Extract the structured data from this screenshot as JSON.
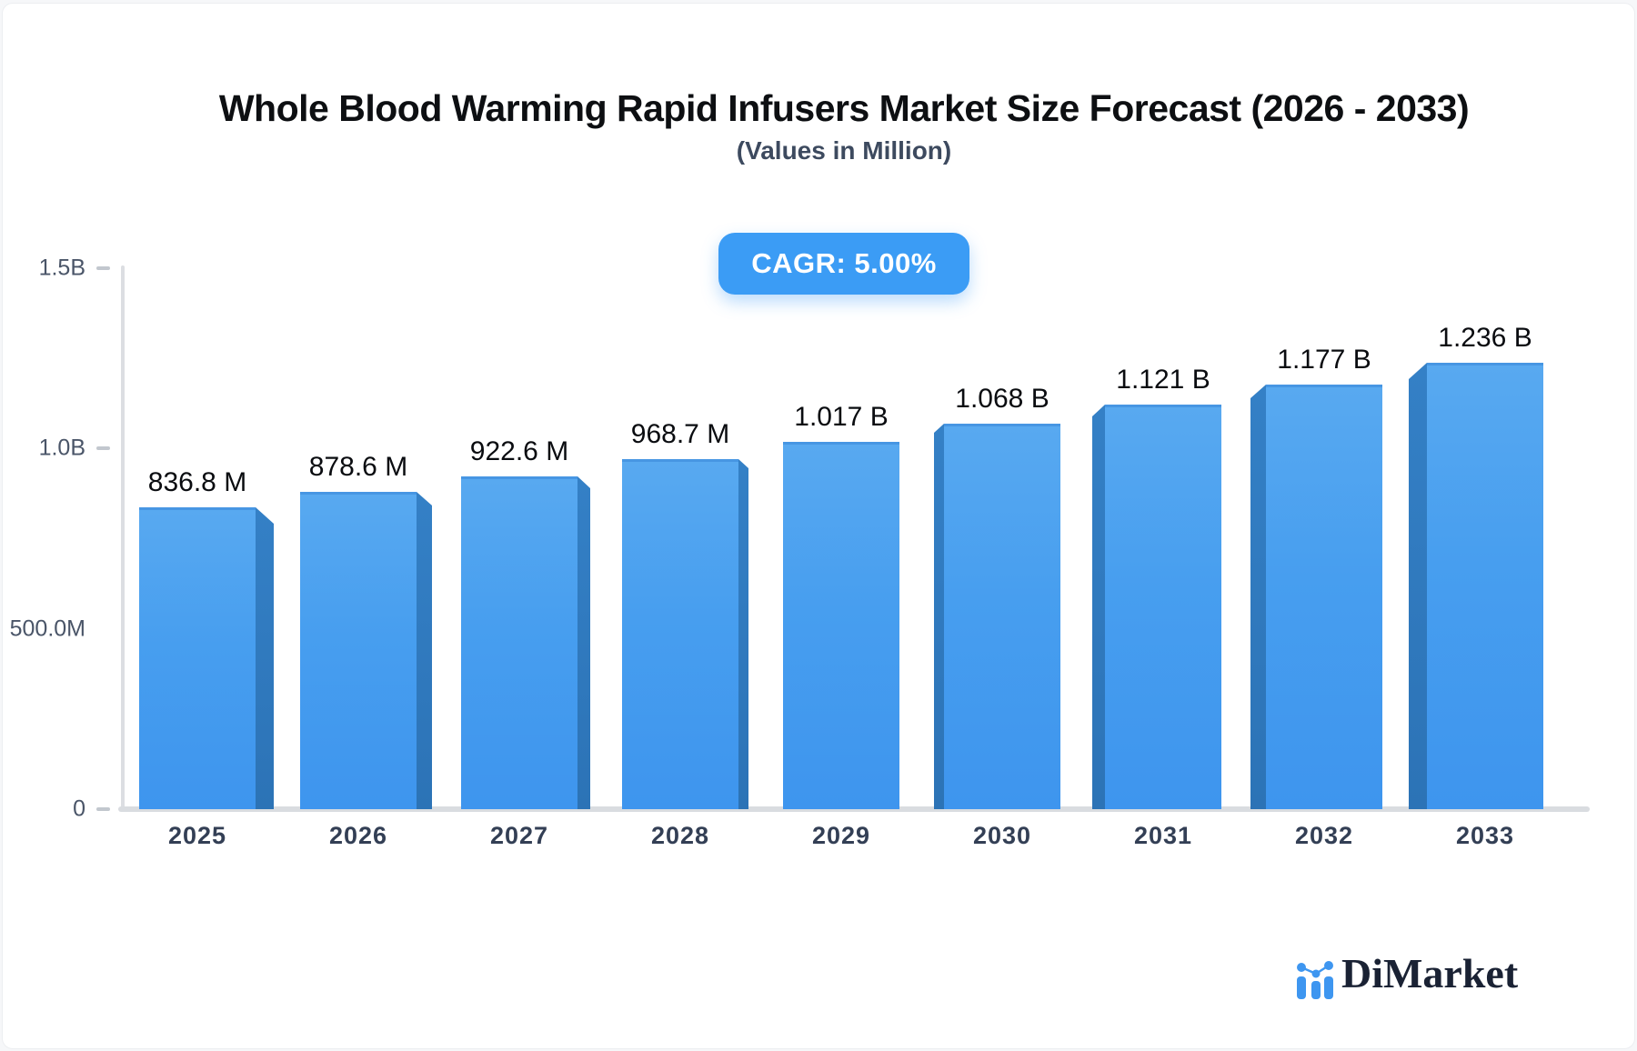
{
  "title": "Whole Blood Warming Rapid Infusers Market Size Forecast (2026 - 2033)",
  "subtitle": "(Values in Million)",
  "badge": {
    "label": "CAGR: 5.00%"
  },
  "chart_data": {
    "type": "bar",
    "title": "Whole Blood Warming Rapid Infusers Market Size Forecast (2026 - 2033)",
    "subtitle": "(Values in Million)",
    "categories": [
      "2025",
      "2026",
      "2027",
      "2028",
      "2029",
      "2030",
      "2031",
      "2032",
      "2033"
    ],
    "values_millions": [
      836.8,
      878.6,
      922.6,
      968.7,
      1017,
      1068,
      1121,
      1177,
      1236
    ],
    "value_labels": [
      "836.8 M",
      "878.6 M",
      "922.6 M",
      "968.7 M",
      "1.017 B",
      "1.068 B",
      "1.121 B",
      "1.177 B",
      "1.236 B"
    ],
    "cagr_percent": "5.00%",
    "xlabel": "",
    "ylabel": "",
    "ylim": [
      0,
      1500
    ],
    "grid": false,
    "legend": false,
    "y_axis_ticks": [
      {
        "label": "1.5B",
        "value": 1500,
        "dash": true
      },
      {
        "label": "1.0B",
        "value": 1000,
        "dash": true
      },
      {
        "label": "500.0M",
        "value": 500,
        "dash": false
      },
      {
        "label": "0",
        "value": 0,
        "dash": true
      }
    ]
  },
  "logo": {
    "brand": "DiMarket"
  },
  "colors": {
    "bar_front_top": "#58A9F0",
    "bar_front_bottom": "#3E95EE",
    "bar_top_edge": "#4796E3",
    "bar_side": "#2C73B6",
    "badge_bg": "#3B9CF5",
    "axis_gray": "#DCDEE2",
    "baseline_gray": "#D9DCE0",
    "title_text": "#0D0F12",
    "subtitle_text": "#3D4A5F",
    "year_label": "#333F55",
    "logo_blue": "#3E96F0",
    "logo_text": "#1A2234"
  }
}
